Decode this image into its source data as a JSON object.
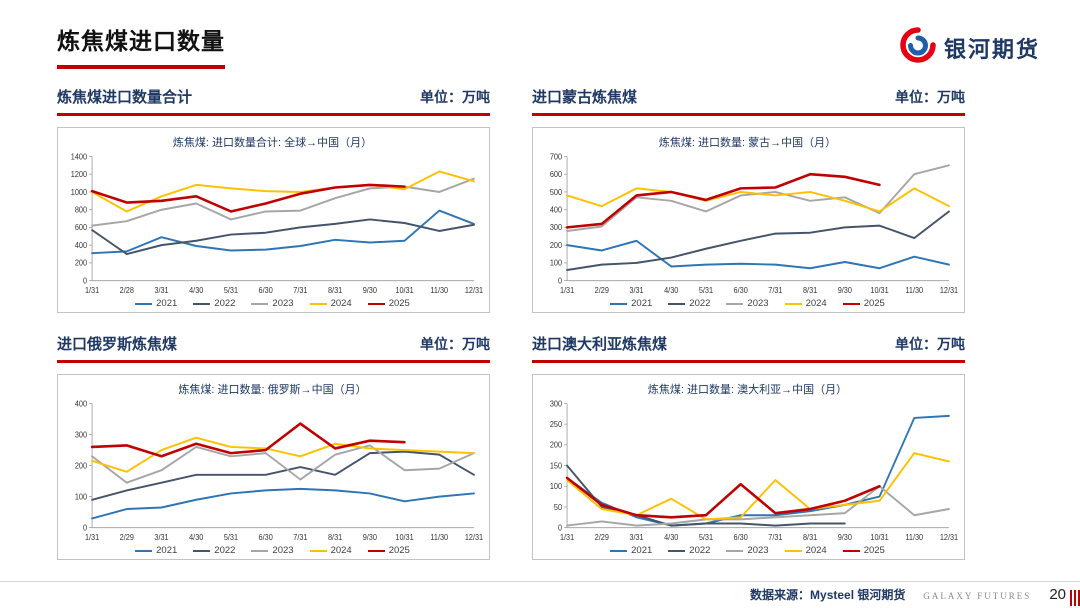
{
  "page": {
    "title": "炼焦煤进口数量",
    "logo_text": "银河期货",
    "footer": {
      "source": "数据来源：Mysteel 银河期货",
      "brand": "GALAXY FUTURES",
      "page_number": "20"
    }
  },
  "series_colors": {
    "2021": "#2e75b6",
    "2022": "#44546a",
    "2023": "#a6a6a6",
    "2024": "#ffc000",
    "2025": "#c00000"
  },
  "chart_data": [
    {
      "type": "line",
      "header_title": "炼焦煤进口数量合计",
      "unit_label": "单位：万吨",
      "title": "炼焦煤: 进口数量合计: 全球→中国（月）",
      "ylim": [
        0,
        1400
      ],
      "yticks": [
        0,
        200,
        400,
        600,
        800,
        1000,
        1200,
        1400
      ],
      "grid": false,
      "legend_position": "bottom",
      "categories": [
        "1/31",
        "2/28",
        "3/31",
        "4/30",
        "5/31",
        "6/30",
        "7/31",
        "8/31",
        "9/30",
        "10/31",
        "11/30",
        "12/31"
      ],
      "series": [
        {
          "name": "2021",
          "color": "#2e75b6",
          "values": [
            310,
            330,
            490,
            390,
            340,
            350,
            390,
            460,
            430,
            450,
            790,
            640
          ]
        },
        {
          "name": "2022",
          "color": "#44546a",
          "values": [
            570,
            300,
            400,
            450,
            520,
            540,
            600,
            640,
            690,
            650,
            560,
            630
          ]
        },
        {
          "name": "2023",
          "color": "#a6a6a6",
          "values": [
            620,
            670,
            800,
            870,
            690,
            780,
            790,
            930,
            1040,
            1060,
            1000,
            1150
          ]
        },
        {
          "name": "2024",
          "color": "#ffc000",
          "values": [
            1000,
            780,
            950,
            1080,
            1040,
            1010,
            1000,
            1050,
            1080,
            1030,
            1230,
            1120
          ]
        },
        {
          "name": "2025",
          "color": "#c00000",
          "values": [
            1010,
            880,
            900,
            950,
            780,
            870,
            980,
            1050,
            1080,
            1060
          ]
        }
      ]
    },
    {
      "type": "line",
      "header_title": "进口蒙古炼焦煤",
      "unit_label": "单位：万吨",
      "title": "炼焦煤: 进口数量: 蒙古→中国（月）",
      "ylim": [
        0,
        700
      ],
      "yticks": [
        0,
        100,
        200,
        300,
        400,
        500,
        600,
        700
      ],
      "grid": false,
      "legend_position": "bottom",
      "categories": [
        "1/31",
        "2/29",
        "3/31",
        "4/30",
        "5/31",
        "6/30",
        "7/31",
        "8/31",
        "9/30",
        "10/31",
        "11/30",
        "12/31"
      ],
      "series": [
        {
          "name": "2021",
          "color": "#2e75b6",
          "values": [
            200,
            170,
            225,
            80,
            90,
            95,
            90,
            70,
            105,
            70,
            135,
            90
          ]
        },
        {
          "name": "2022",
          "color": "#44546a",
          "values": [
            60,
            90,
            100,
            130,
            180,
            225,
            265,
            270,
            300,
            310,
            240,
            390
          ]
        },
        {
          "name": "2023",
          "color": "#a6a6a6",
          "values": [
            280,
            305,
            470,
            450,
            390,
            480,
            500,
            450,
            470,
            380,
            600,
            650
          ]
        },
        {
          "name": "2024",
          "color": "#ffc000",
          "values": [
            480,
            420,
            520,
            500,
            450,
            500,
            480,
            500,
            450,
            390,
            520,
            420
          ]
        },
        {
          "name": "2025",
          "color": "#c00000",
          "values": [
            300,
            320,
            480,
            500,
            455,
            520,
            525,
            600,
            585,
            540
          ]
        }
      ]
    },
    {
      "type": "line",
      "header_title": "进口俄罗斯炼焦煤",
      "unit_label": "单位：万吨",
      "title": "炼焦煤: 进口数量: 俄罗斯→中国（月）",
      "ylim": [
        0,
        400
      ],
      "yticks": [
        0,
        100,
        200,
        300,
        400
      ],
      "grid": false,
      "legend_position": "bottom",
      "categories": [
        "1/31",
        "2/29",
        "3/31",
        "4/30",
        "5/31",
        "6/30",
        "7/31",
        "8/31",
        "9/30",
        "10/31",
        "11/30",
        "12/31"
      ],
      "series": [
        {
          "name": "2021",
          "color": "#2e75b6",
          "values": [
            30,
            60,
            65,
            90,
            110,
            120,
            125,
            120,
            110,
            85,
            100,
            110
          ]
        },
        {
          "name": "2022",
          "color": "#44546a",
          "values": [
            90,
            120,
            145,
            170,
            170,
            170,
            195,
            170,
            240,
            245,
            235,
            170
          ]
        },
        {
          "name": "2023",
          "color": "#a6a6a6",
          "values": [
            230,
            145,
            185,
            260,
            230,
            240,
            155,
            235,
            265,
            185,
            190,
            240
          ]
        },
        {
          "name": "2024",
          "color": "#ffc000",
          "values": [
            215,
            180,
            250,
            290,
            260,
            255,
            230,
            270,
            255,
            250,
            245,
            240
          ]
        },
        {
          "name": "2025",
          "color": "#c00000",
          "values": [
            260,
            265,
            230,
            270,
            240,
            250,
            335,
            255,
            280,
            275
          ]
        }
      ]
    },
    {
      "type": "line",
      "header_title": "进口澳大利亚炼焦煤",
      "unit_label": "单位：万吨",
      "title": "炼焦煤: 进口数量: 澳大利亚→中国（月）",
      "ylim": [
        0,
        300
      ],
      "yticks": [
        0,
        50,
        100,
        150,
        200,
        250,
        300
      ],
      "grid": false,
      "legend_position": "bottom",
      "categories": [
        "1/31",
        "2/29",
        "3/31",
        "4/30",
        "5/31",
        "6/30",
        "7/31",
        "8/31",
        "9/30",
        "10/31",
        "11/30",
        "12/31"
      ],
      "series": [
        {
          "name": "2021",
          "color": "#2e75b6",
          "values": [
            120,
            60,
            25,
            5,
            10,
            30,
            30,
            40,
            55,
            75,
            265,
            270
          ]
        },
        {
          "name": "2022",
          "color": "#44546a",
          "values": [
            150,
            50,
            30,
            5,
            10,
            10,
            5,
            10,
            10
          ]
        },
        {
          "name": "2023",
          "color": "#a6a6a6",
          "values": [
            5,
            15,
            5,
            10,
            20,
            20,
            25,
            30,
            35,
            100,
            30,
            45
          ]
        },
        {
          "name": "2024",
          "color": "#ffc000",
          "values": [
            115,
            45,
            30,
            70,
            20,
            25,
            115,
            45,
            55,
            65,
            180,
            160
          ]
        },
        {
          "name": "2025",
          "color": "#c00000",
          "values": [
            120,
            55,
            30,
            25,
            30,
            105,
            35,
            45,
            65,
            100
          ]
        }
      ]
    }
  ]
}
